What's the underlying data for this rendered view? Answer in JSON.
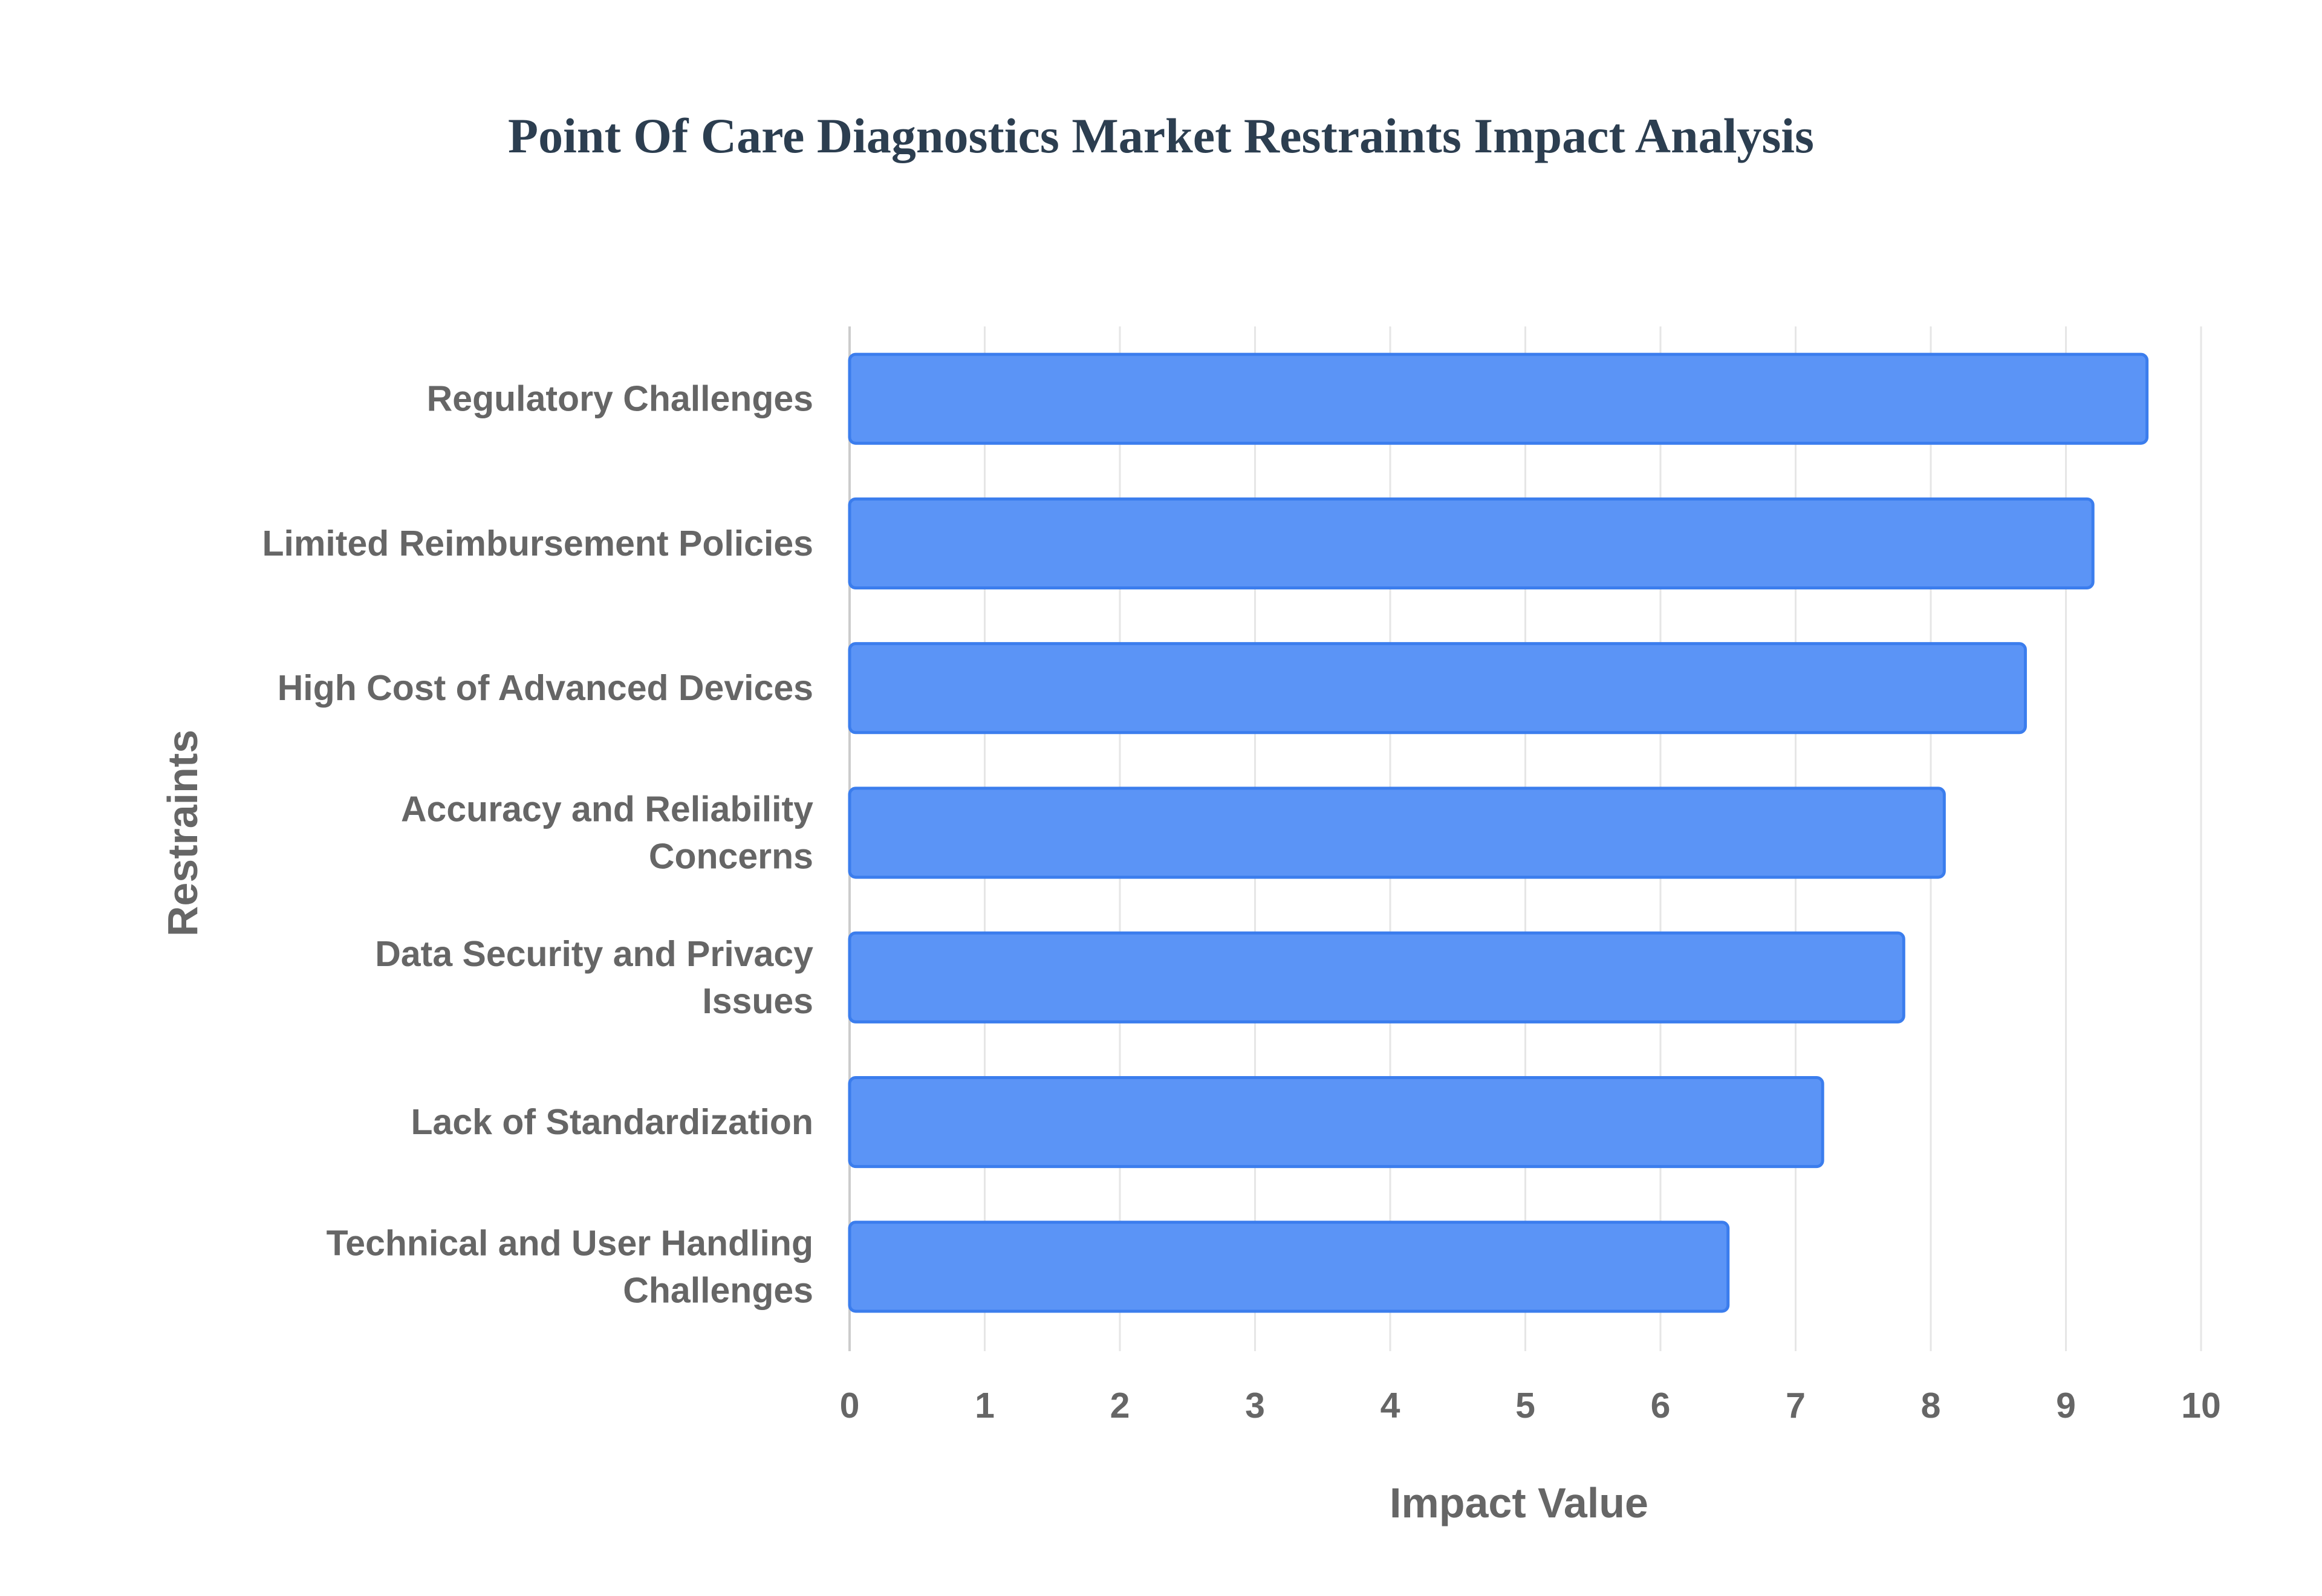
{
  "chart_data": {
    "type": "bar",
    "orientation": "horizontal",
    "title": "Point Of Care Diagnostics Market Restraints Impact Analysis",
    "xlabel": "Impact Value",
    "ylabel": "Restraints",
    "categories": [
      [
        "Regulatory Challenges"
      ],
      [
        "Limited Reimbursement Policies"
      ],
      [
        "High Cost of Advanced Devices"
      ],
      [
        "Accuracy and Reliability",
        "Concerns"
      ],
      [
        "Data Security and Privacy",
        "Issues"
      ],
      [
        "Lack of Standardization"
      ],
      [
        "Technical and User Handling",
        "Challenges"
      ]
    ],
    "values": [
      9.6,
      9.2,
      8.7,
      8.1,
      7.8,
      7.2,
      6.5
    ],
    "xlim": [
      0,
      10
    ],
    "xticks": [
      "0",
      "1",
      "2",
      "3",
      "4",
      "5",
      "6",
      "7",
      "8",
      "9",
      "10"
    ],
    "grid": true,
    "legend": "none",
    "colors": {
      "bar_fill": "#5b94f6",
      "bar_stroke": "#3b7ded",
      "grid": "#e6e6e6",
      "axis": "#cccccc",
      "title": "#2c3e50",
      "text": "#666666"
    }
  }
}
